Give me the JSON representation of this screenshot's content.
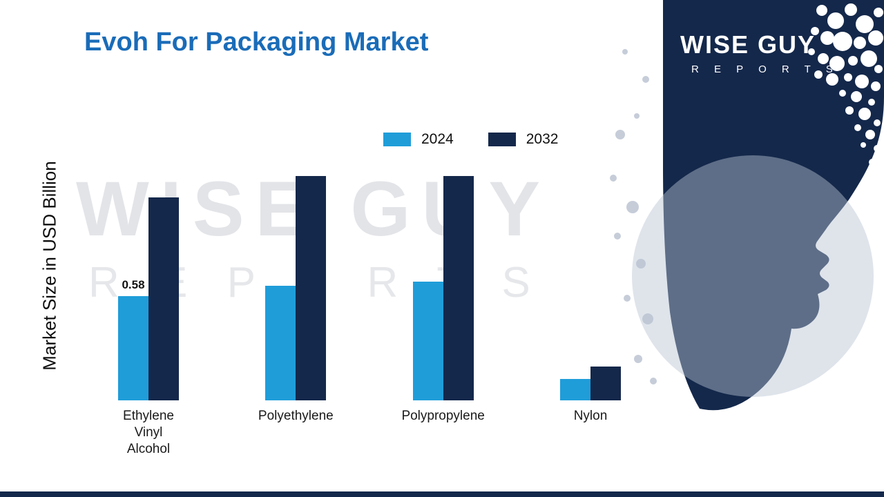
{
  "header": {
    "title": "Evoh For Packaging Market"
  },
  "brand": {
    "logo_name": "WISE GUY",
    "logo_sub": "R E P O R T S",
    "watermark_name": "WISE GUY",
    "watermark_sub": "R E P O R T S"
  },
  "chart_data": {
    "type": "bar",
    "title": "Evoh For Packaging Market",
    "xlabel": "",
    "ylabel": "Market Size in USD Billion",
    "categories": [
      "Ethylene Vinyl Alcohol",
      "Polyethylene",
      "Polypropylene",
      "Nylon"
    ],
    "series": [
      {
        "name": "2024",
        "color": "#1f9dd9",
        "values": [
          0.58,
          0.64,
          0.66,
          0.12
        ]
      },
      {
        "name": "2032",
        "color": "#14284b",
        "values": [
          1.13,
          1.25,
          1.25,
          0.19
        ]
      }
    ],
    "bar_labels": [
      {
        "series_index": 0,
        "category_index": 0,
        "text": "0.58"
      }
    ],
    "ylim": [
      0,
      1.4
    ],
    "grid": false,
    "legend_position": "top-center"
  },
  "colors": {
    "accent_blue": "#1f9dd9",
    "navy": "#14284b",
    "title_blue": "#1a6cb8",
    "watermark_gray": "#e3e4e8"
  }
}
